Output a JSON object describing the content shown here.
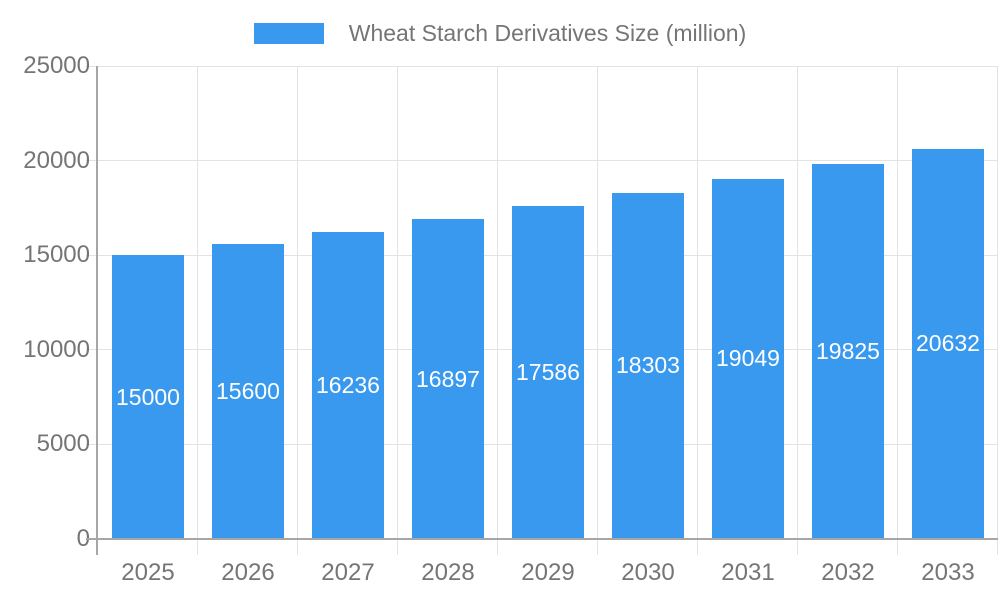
{
  "chart_data": {
    "type": "bar",
    "title": "Wheat Starch Derivatives Size (million)",
    "categories": [
      "2025",
      "2026",
      "2027",
      "2028",
      "2029",
      "2030",
      "2031",
      "2032",
      "2033"
    ],
    "values": [
      15000,
      15600,
      16236,
      16897,
      17586,
      18303,
      19049,
      19825,
      20632
    ],
    "value_labels": [
      "15000",
      "15600",
      "16236",
      "16897",
      "17586",
      "18303",
      "19049",
      "19825",
      "20632"
    ],
    "xlabel": "",
    "ylabel": "",
    "ylim": [
      0,
      25000
    ],
    "yticks": [
      0,
      5000,
      10000,
      15000,
      20000,
      25000
    ],
    "ytick_labels": [
      "0",
      "5000",
      "10000",
      "15000",
      "20000",
      "25000"
    ],
    "grid": true,
    "legend_position": "top-center",
    "colors": {
      "bar": "#3899EF",
      "value_label": "#FFFFFF",
      "axis_text": "#757575",
      "grid_line": "#E3E3E3",
      "axis_line": "#A6A6A6",
      "background": "#FFFFFF"
    }
  }
}
